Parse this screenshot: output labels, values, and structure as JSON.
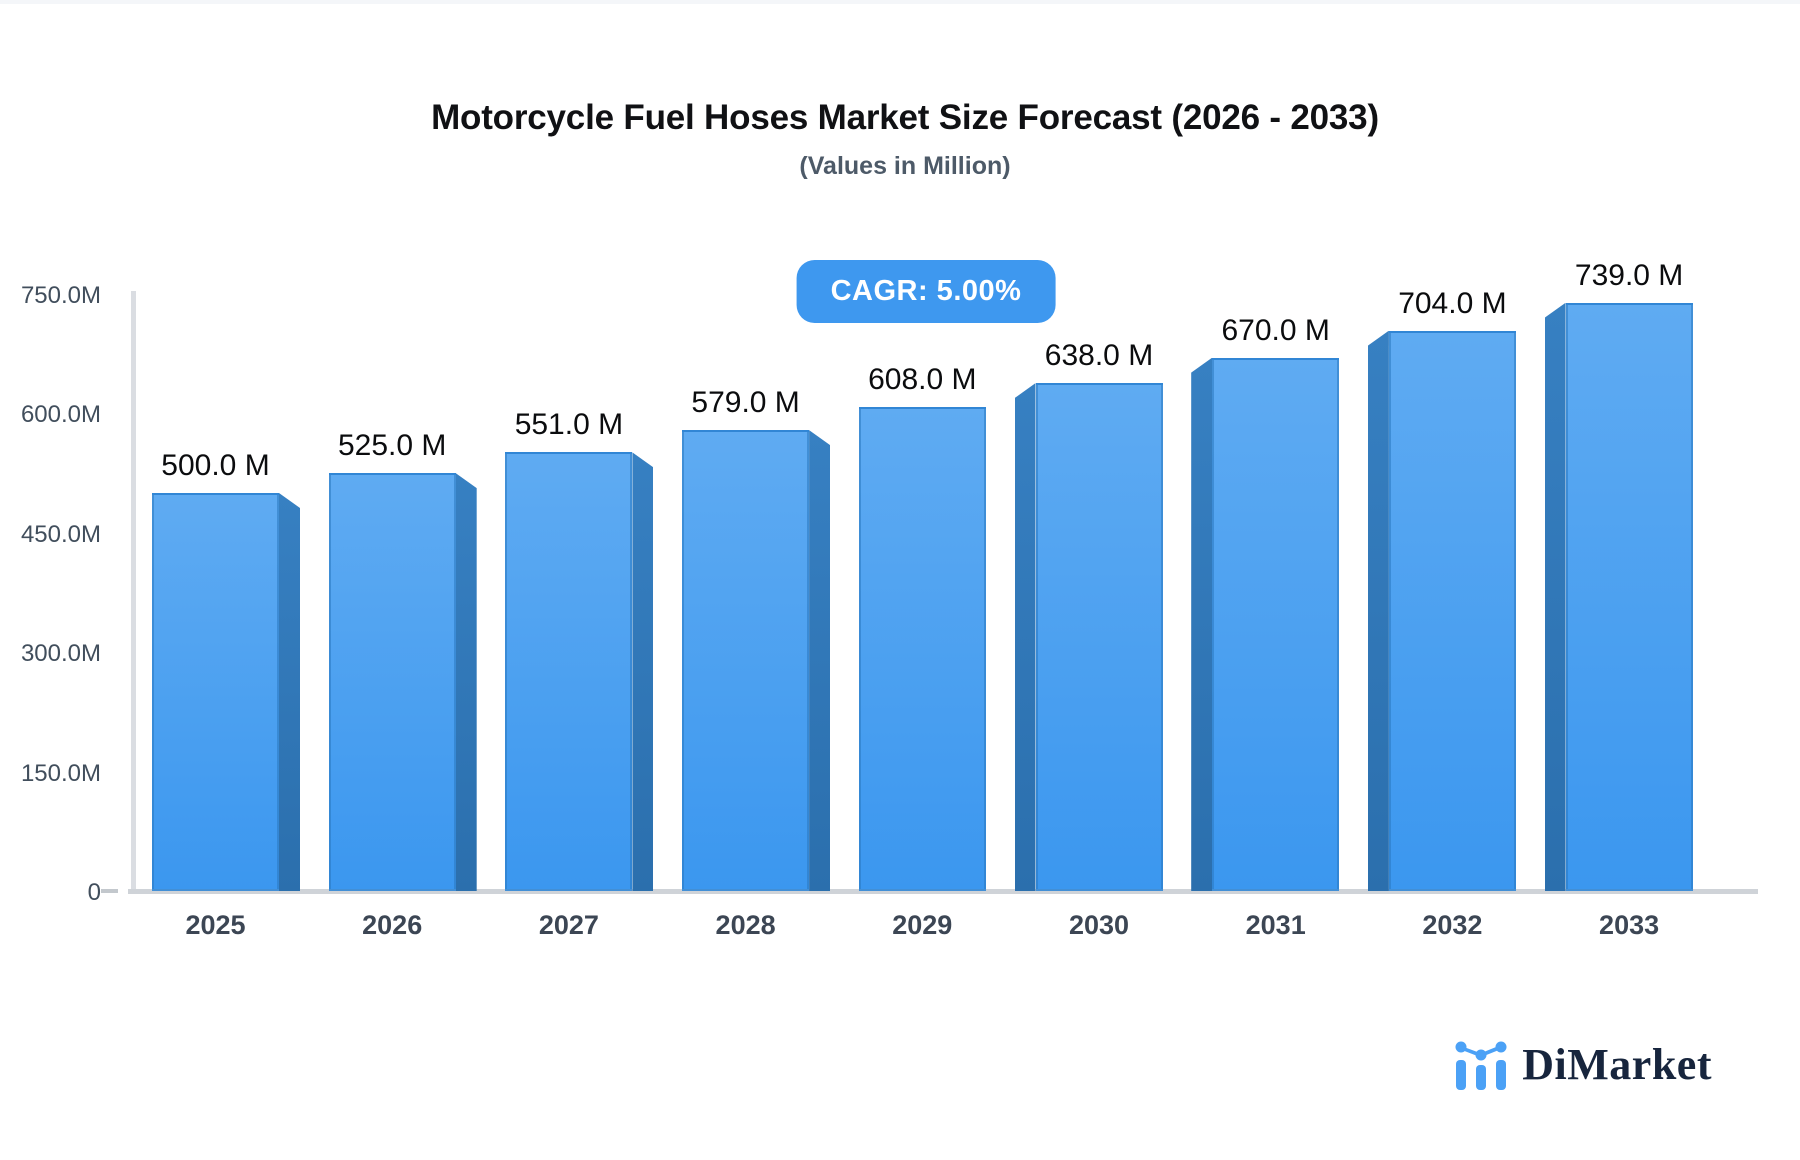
{
  "title": "Motorcycle Fuel Hoses Market Size Forecast (2026 - 2033)",
  "subtitle": "(Values in Million)",
  "cagr_badge": "CAGR: 5.00%",
  "logo": {
    "text": "DiMarket",
    "icon": "bar-chart-trend-icon"
  },
  "colors": {
    "accent_blue": "#3e98ef",
    "bar_face_top": "#5fabf2",
    "bar_face_bottom": "#3b97ef",
    "bar_side_top": "#3780c2",
    "bar_side_bottom": "#2b6fad",
    "axis_gray": "#d5d9dd",
    "title_text": "#101114",
    "subtitle_text": "#4d5a68",
    "tick_text": "#414e5c",
    "logo_navy": "#17253d",
    "logo_blue": "#4ba1f6"
  },
  "chart_data": {
    "type": "bar",
    "title": "Motorcycle Fuel Hoses Market Size Forecast (2026 - 2033)",
    "subtitle": "(Values in Million)",
    "categories": [
      "2025",
      "2026",
      "2027",
      "2028",
      "2029",
      "2030",
      "2031",
      "2032",
      "2033"
    ],
    "values": [
      500,
      525,
      551,
      579,
      608,
      638,
      670,
      704,
      739
    ],
    "value_labels": [
      "500.0 M",
      "525.0 M",
      "551.0 M",
      "579.0 M",
      "608.0 M",
      "638.0 M",
      "670.0 M",
      "704.0 M",
      "739.0 M"
    ],
    "unit": "Million",
    "ylim": [
      0,
      750
    ],
    "y_ticks": [
      {
        "label": "750.0M",
        "value": 750
      },
      {
        "label": "600.0M",
        "value": 600
      },
      {
        "label": "450.0M",
        "value": 450
      },
      {
        "label": "300.0M",
        "value": 300
      },
      {
        "label": "150.0M",
        "value": 150
      },
      {
        "label": "0",
        "value": 0
      }
    ],
    "grid": false,
    "legend": false,
    "style": "3d-extruded-bars",
    "cagr": "5.00%"
  }
}
